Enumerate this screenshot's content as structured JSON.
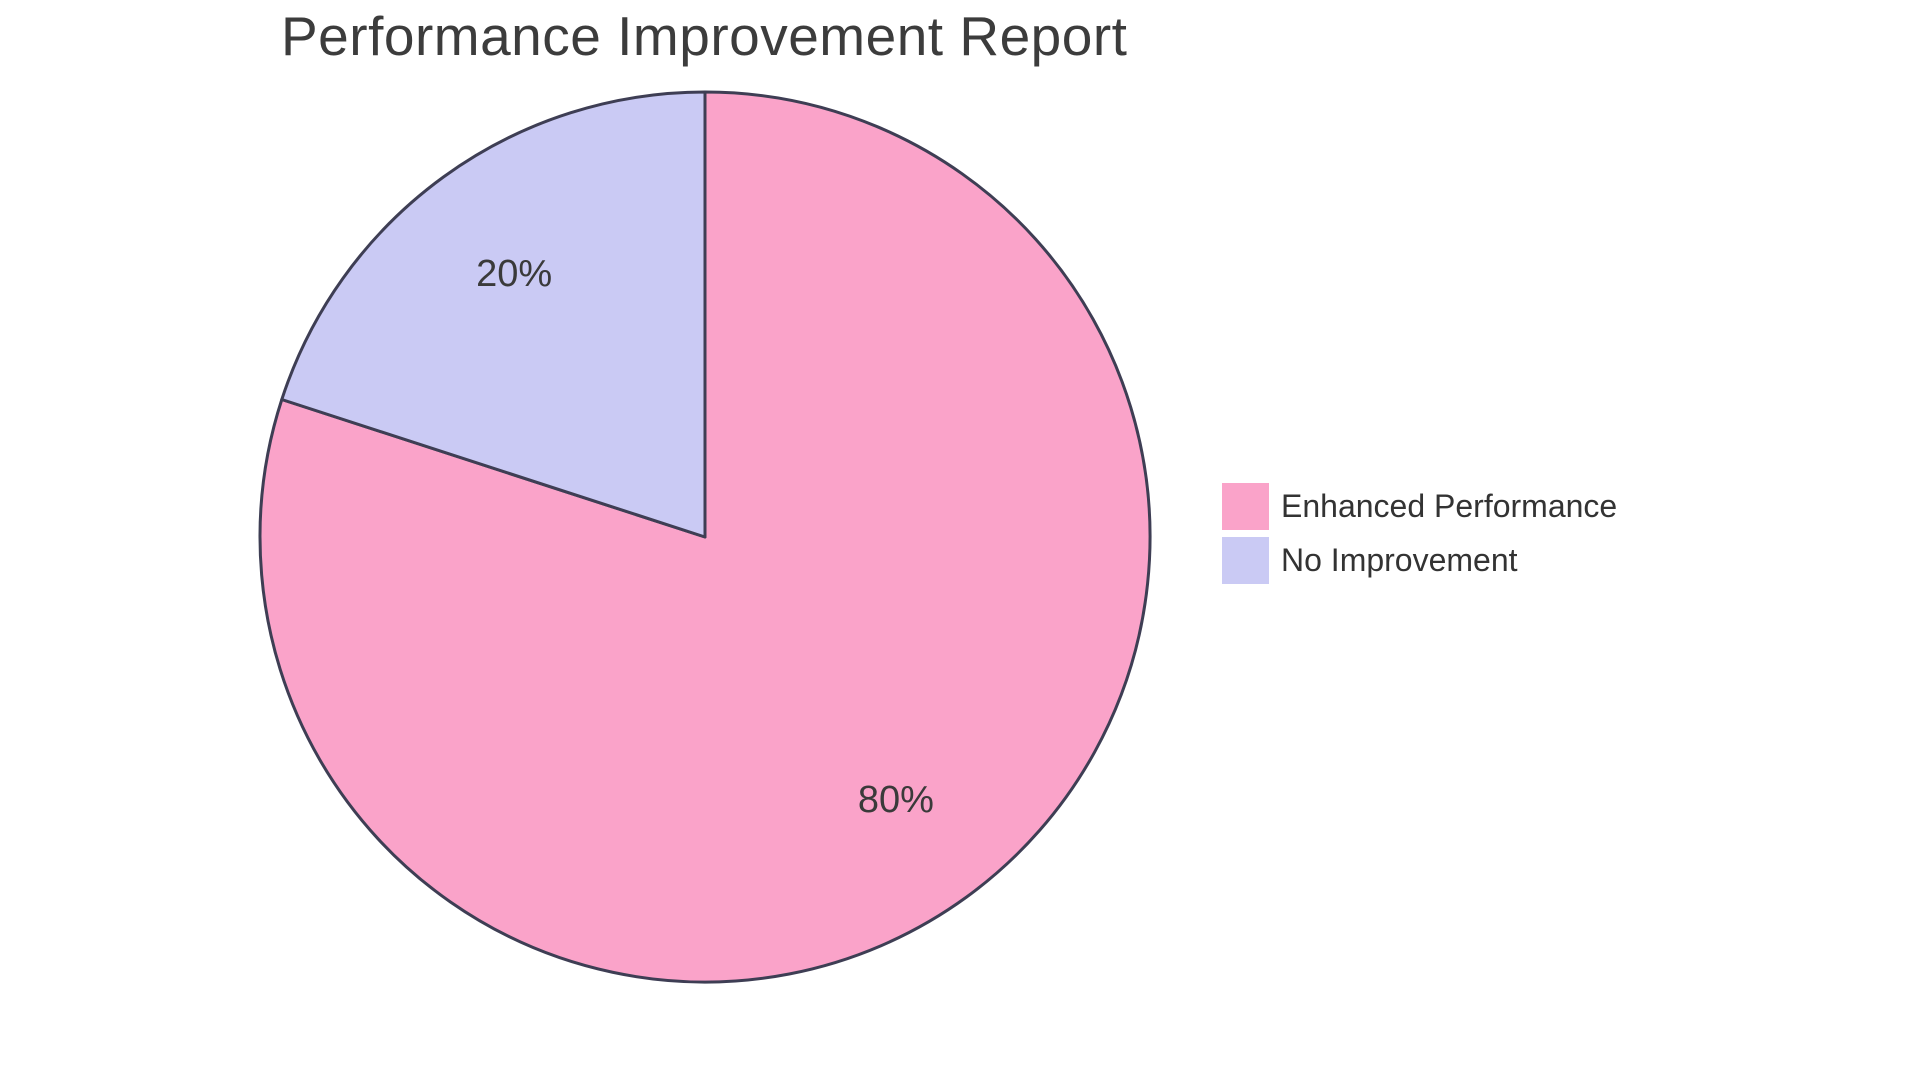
{
  "title": "Performance Improvement Report",
  "chart_data": {
    "type": "pie",
    "title": "Performance Improvement Report",
    "categories": [
      "Enhanced Performance",
      "No Improvement"
    ],
    "values": [
      80,
      20
    ],
    "slices": [
      {
        "label": "Enhanced Performance",
        "value": 80,
        "display": "80%",
        "color": "#FAA3C9"
      },
      {
        "label": "No Improvement",
        "value": 20,
        "display": "20%",
        "color": "#CACAF4"
      }
    ],
    "start_angle_deg": -90,
    "direction": "clockwise",
    "stroke_color": "#3E3E54",
    "stroke_width": 3,
    "label_color": "#3A3A3A",
    "label_radius_fraction": 0.73,
    "legend_position": "right",
    "background": "#FFFFFF",
    "title_color": "#3C3C3C",
    "legend_text_color": "#333333"
  }
}
